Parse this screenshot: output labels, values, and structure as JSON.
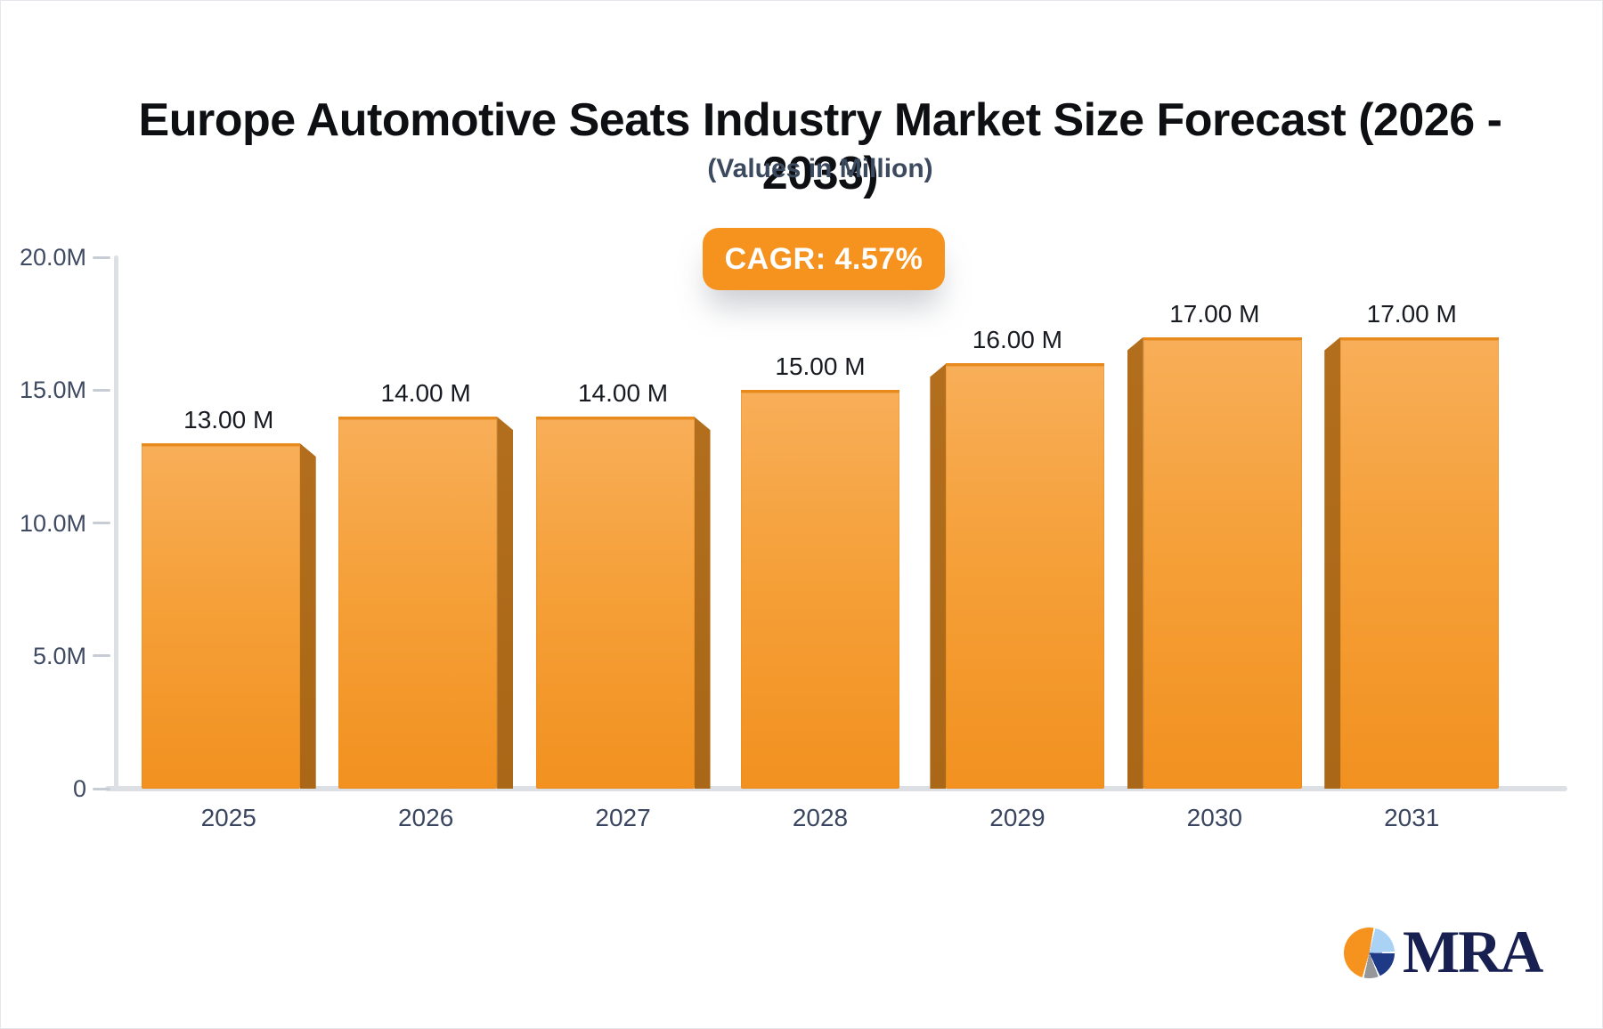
{
  "header": {
    "title": "Europe Automotive Seats Industry Market Size Forecast (2026 - 2033)",
    "subtitle": "(Values in Million)"
  },
  "cagr_badge": {
    "label": "CAGR: 4.57%",
    "background": "#F6921E",
    "text_color": "#FFFFFF"
  },
  "chart_data": {
    "type": "bar",
    "title": "Europe Automotive Seats Industry Market Size Forecast (2026 - 2033)",
    "subtitle": "(Values in Million)",
    "unit": "Million",
    "categories": [
      "2025",
      "2026",
      "2027",
      "2028",
      "2029",
      "2030",
      "2031"
    ],
    "values": [
      13,
      14,
      14,
      15,
      16,
      17,
      17
    ],
    "value_labels": [
      "13.00 M",
      "14.00 M",
      "14.00 M",
      "15.00 M",
      "16.00 M",
      "17.00 M",
      "17.00 M"
    ],
    "bevels": [
      "right",
      "right",
      "right",
      "front",
      "left",
      "left",
      "left"
    ],
    "ylim": [
      0,
      20
    ],
    "yticks": [
      {
        "value": 20,
        "label": "20.0M"
      },
      {
        "value": 15,
        "label": "15.0M"
      },
      {
        "value": 10,
        "label": "10.0M"
      },
      {
        "value": 5,
        "label": "5.0M"
      },
      {
        "value": 0,
        "label": "0"
      }
    ],
    "xlabel": "",
    "ylabel": "",
    "grid": false,
    "legend": false,
    "colors": {
      "face_top": "#F8AE58",
      "face_bottom": "#F29120",
      "face_edge": "#E8891B",
      "side": "#B26E1C",
      "axis": "#DCDFE4",
      "tick_label": "#3F4B63",
      "value_label": "#171A20"
    }
  },
  "logo": {
    "text": "MRA",
    "pie_colors": {
      "orange": "#F6921E",
      "light_blue": "#A9D2F4",
      "navy": "#1E3A86",
      "gray": "#95979B"
    }
  }
}
